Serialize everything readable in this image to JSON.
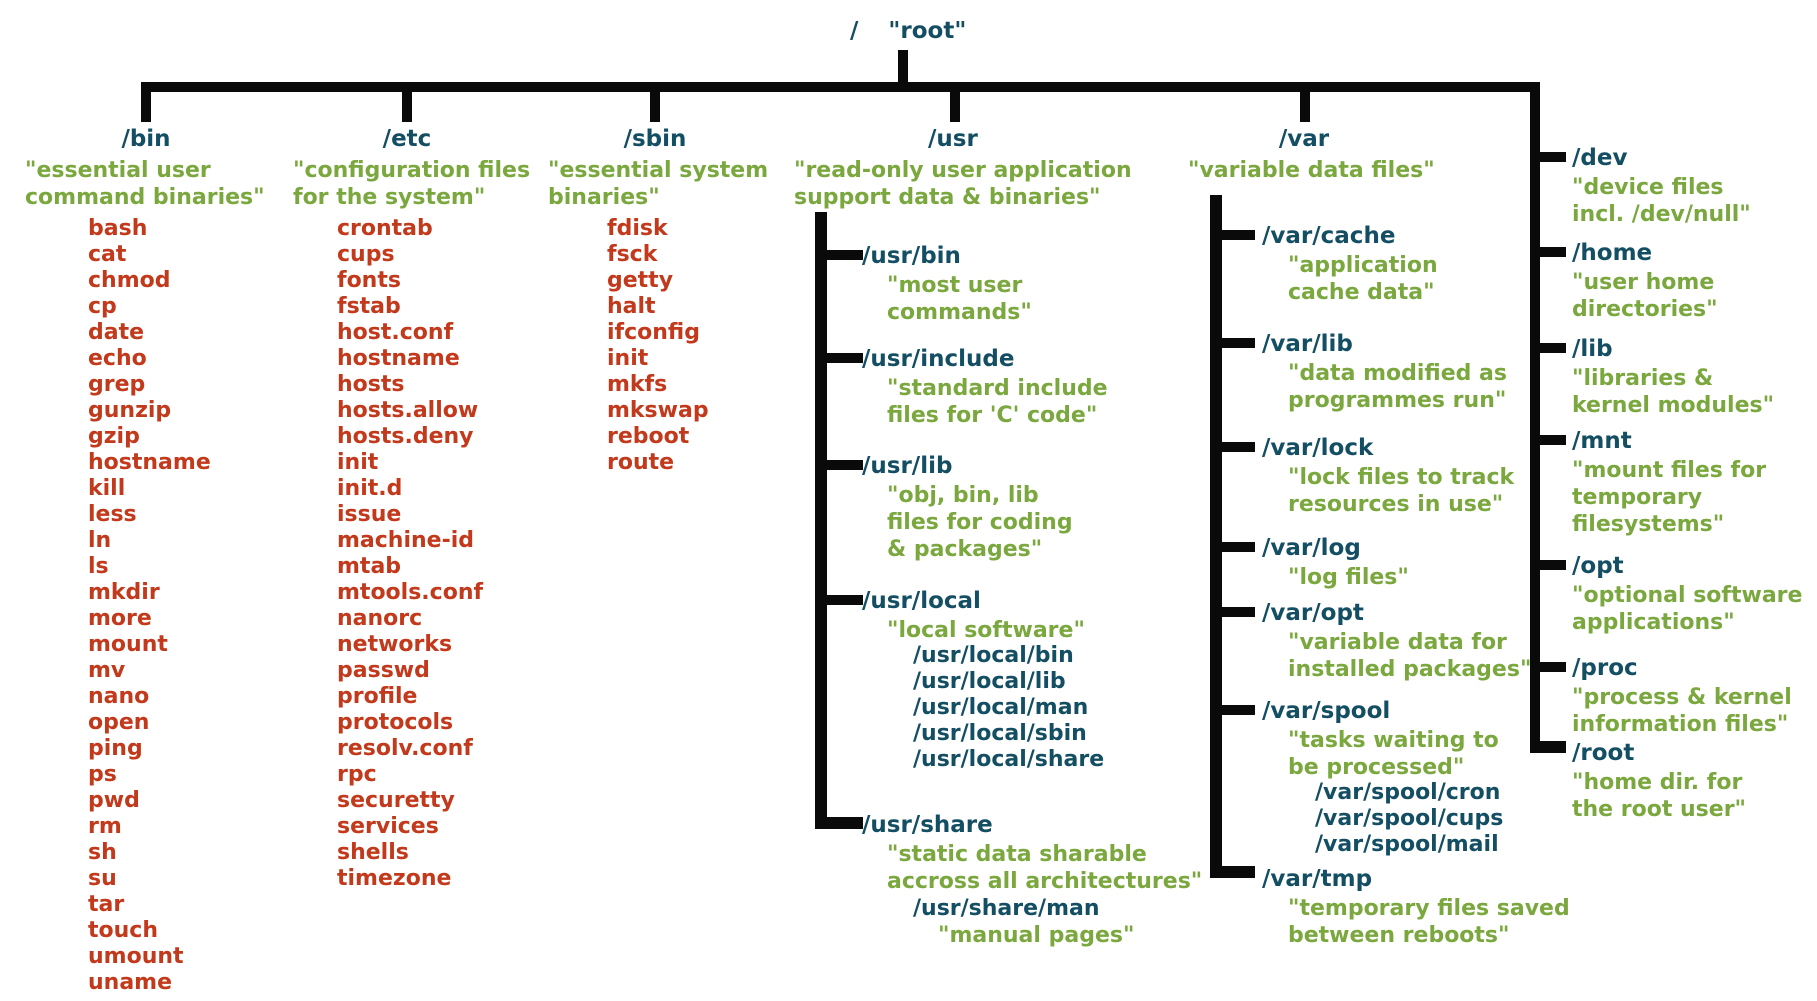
{
  "theme": {
    "dir_color": "#134e63",
    "desc_color": "#7ba83e",
    "file_color": "#c2391b",
    "line_color": "#0a0a0a",
    "bg_color": "#ffffff"
  },
  "root": {
    "slash": "/",
    "label": "\"root\""
  },
  "bin": {
    "label": "/bin",
    "desc": "\"essential user\ncommand binaries\"",
    "items": [
      "bash",
      "cat",
      "chmod",
      "cp",
      "date",
      "echo",
      "grep",
      "gunzip",
      "gzip",
      "hostname",
      "kill",
      "less",
      "ln",
      "ls",
      "mkdir",
      "more",
      "mount",
      "mv",
      "nano",
      "open",
      "ping",
      "ps",
      "pwd",
      "rm",
      "sh",
      "su",
      "tar",
      "touch",
      "umount",
      "uname"
    ]
  },
  "etc": {
    "label": "/etc",
    "desc": "\"configuration files\nfor the system\"",
    "items": [
      "crontab",
      "cups",
      "fonts",
      "fstab",
      "host.conf",
      "hostname",
      "hosts",
      "hosts.allow",
      "hosts.deny",
      "init",
      "init.d",
      "issue",
      "machine-id",
      "mtab",
      "mtools.conf",
      "nanorc",
      "networks",
      "passwd",
      "profile",
      "protocols",
      "resolv.conf",
      "rpc",
      "securetty",
      "services",
      "shells",
      "timezone"
    ]
  },
  "sbin": {
    "label": "/sbin",
    "desc": "\"essential system\nbinaries\"",
    "items": [
      "fdisk",
      "fsck",
      "getty",
      "halt",
      "ifconfig",
      "init",
      "mkfs",
      "mkswap",
      "reboot",
      "route"
    ]
  },
  "usr": {
    "label": "/usr",
    "desc": "\"read-only user application\nsupport data & binaries\"",
    "children": [
      {
        "label": "/usr/bin",
        "desc": "\"most user\ncommands\""
      },
      {
        "label": "/usr/include",
        "desc": "\"standard include\nfiles for 'C' code\""
      },
      {
        "label": "/usr/lib",
        "desc": "\"obj, bin, lib\nfiles for coding\n& packages\""
      },
      {
        "label": "/usr/local",
        "desc": "\"local software\"",
        "subdirs": [
          "/usr/local/bin",
          "/usr/local/lib",
          "/usr/local/man",
          "/usr/local/sbin",
          "/usr/local/share"
        ]
      },
      {
        "label": "/usr/share",
        "desc": "\"static data sharable\naccross all architectures\"",
        "child": {
          "label": "/usr/share/man",
          "desc": "\"manual pages\""
        }
      }
    ]
  },
  "var": {
    "label": "/var",
    "desc": "\"variable data files\"",
    "children": [
      {
        "label": "/var/cache",
        "desc": "\"application\ncache data\""
      },
      {
        "label": "/var/lib",
        "desc": "\"data modified as\nprogrammes run\""
      },
      {
        "label": "/var/lock",
        "desc": "\"lock files to track\nresources in use\""
      },
      {
        "label": "/var/log",
        "desc": "\"log files\""
      },
      {
        "label": "/var/opt",
        "desc": "\"variable data for\ninstalled packages\""
      },
      {
        "label": "/var/spool",
        "desc": "\"tasks waiting to\nbe processed\"",
        "subdirs": [
          "/var/spool/cron",
          "/var/spool/cups",
          "/var/spool/mail"
        ]
      },
      {
        "label": "/var/tmp",
        "desc": "\"temporary files saved\nbetween reboots\""
      }
    ]
  },
  "right": {
    "children": [
      {
        "label": "/dev",
        "desc": "\"device files\nincl. /dev/null\""
      },
      {
        "label": "/home",
        "desc": "\"user home\ndirectories\""
      },
      {
        "label": "/lib",
        "desc": "\"libraries &\nkernel modules\""
      },
      {
        "label": "/mnt",
        "desc": "\"mount files for\ntemporary\nfilesystems\""
      },
      {
        "label": "/opt",
        "desc": "\"optional software\napplications\""
      },
      {
        "label": "/proc",
        "desc": "\"process & kernel\ninformation files\""
      },
      {
        "label": "/root",
        "desc": "\"home dir. for\nthe root user\""
      }
    ]
  }
}
